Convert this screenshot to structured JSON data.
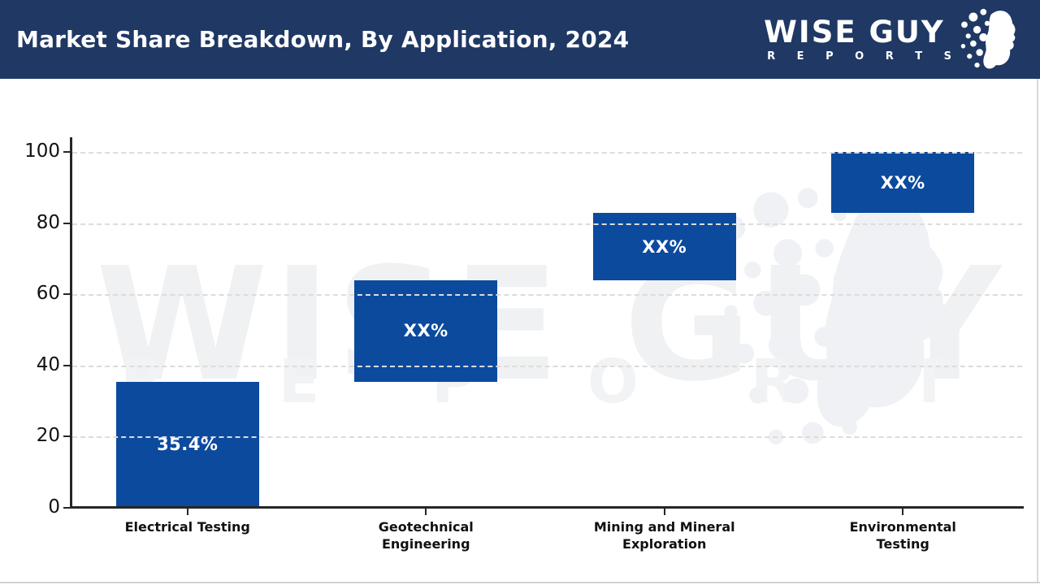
{
  "header": {
    "title": "Market Share Breakdown, By Application, 2024",
    "bg_color": "#1f3864",
    "logo": {
      "line1": "WISE GUY",
      "line2": "R E P O R T S"
    }
  },
  "watermark": {
    "line1": "WISE GUY",
    "line2": "R E P O R T S"
  },
  "chart_data": {
    "type": "bar",
    "subtype": "floating-waterfall",
    "title": "Market Share Breakdown, By Application, 2024",
    "xlabel": "",
    "ylabel": "",
    "ylim": [
      0,
      100
    ],
    "yticks": [
      0,
      20,
      40,
      60,
      80,
      100
    ],
    "grid": "horizontal-dashed",
    "legend": "none",
    "bar_color": "#0c4a9e",
    "bar_label_color": "#ffffff",
    "categories": [
      "Electrical Testing",
      "Geotechnical\nEngineering",
      "Mining and Mineral\nExploration",
      "Environmental\nTesting"
    ],
    "series": [
      {
        "name": "Market Share",
        "segments": [
          {
            "category": "Electrical Testing",
            "start": 0,
            "end": 35.4,
            "label": "35.4%"
          },
          {
            "category": "Geotechnical Engineering",
            "start": 35.4,
            "end": 64,
            "label": "XX%"
          },
          {
            "category": "Mining and Mineral Exploration",
            "start": 64,
            "end": 82.8,
            "label": "XX%"
          },
          {
            "category": "Environmental Testing",
            "start": 82.8,
            "end": 100,
            "label": "XX%"
          }
        ]
      }
    ]
  }
}
